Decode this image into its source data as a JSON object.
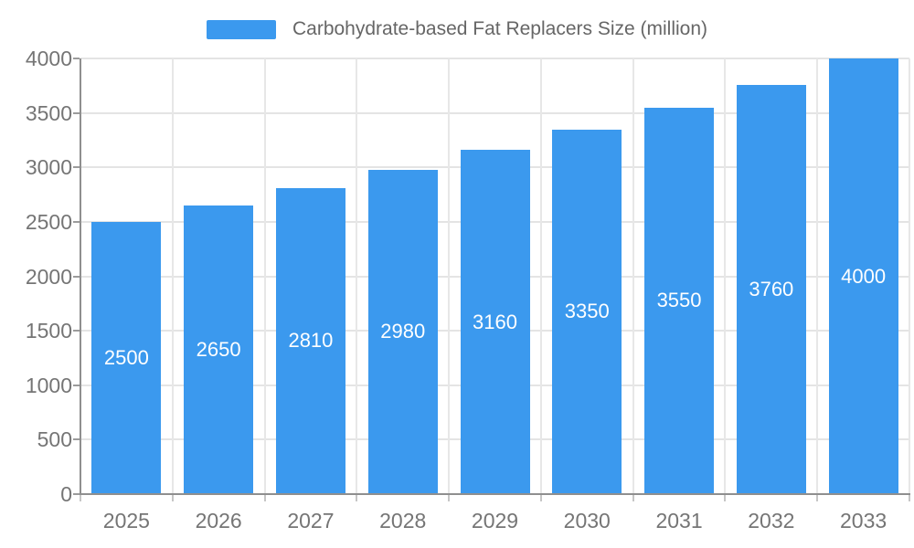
{
  "chart_data": {
    "type": "bar",
    "title": "",
    "categories": [
      "2025",
      "2026",
      "2027",
      "2028",
      "2029",
      "2030",
      "2031",
      "2032",
      "2033"
    ],
    "series": [
      {
        "name": "Carbohydrate-based Fat Replacers Size (million)",
        "values": [
          2500,
          2650,
          2810,
          2980,
          3160,
          3350,
          3550,
          3760,
          4000
        ]
      }
    ],
    "value_labels": [
      "2500",
      "2650",
      "2810",
      "2980",
      "3160",
      "3350",
      "3550",
      "3760",
      "4000"
    ],
    "value_label_position": "inside-center",
    "xlabel": "",
    "ylabel": "",
    "ylim": [
      0,
      4000
    ],
    "yticks": [
      0,
      500,
      1000,
      1500,
      2000,
      2500,
      3000,
      3500,
      4000
    ],
    "grid": true,
    "legend_position": "top-center"
  },
  "legend": {
    "label": "Carbohydrate-based Fat Replacers Size (million)"
  },
  "colors": {
    "bar": "#3b99ee",
    "bar_label_text": "#ffffff",
    "grid_h": "#e4e4e4",
    "grid_v": "#e7e7e7",
    "axis_line": "#8f8f8f",
    "tick_text": "#757575",
    "legend_text": "#666666",
    "background": "#ffffff"
  }
}
